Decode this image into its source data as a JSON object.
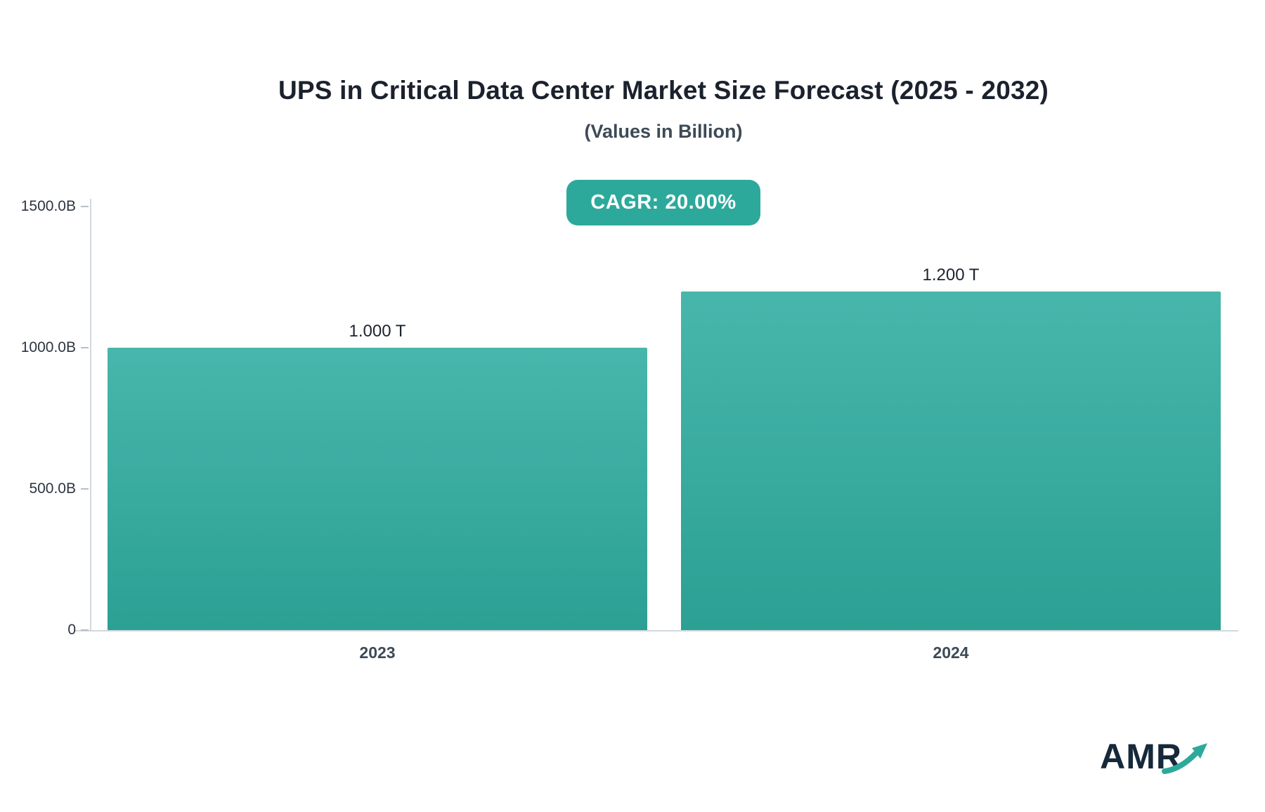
{
  "header": {
    "title": "UPS in Critical Data Center Market Size Forecast (2025 - 2032)",
    "subtitle": "(Values in Billion)",
    "cagr_badge": "CAGR: 20.00%"
  },
  "chart_data": {
    "type": "bar",
    "title": "UPS in Critical Data Center Market Size Forecast (2025 - 2032)",
    "subtitle": "(Values in Billion)",
    "cagr": "CAGR: 20.00%",
    "categories": [
      "2023",
      "2024"
    ],
    "values": [
      1000,
      1200
    ],
    "value_labels": [
      "1.000 T",
      "1.200 T"
    ],
    "xlabel": "",
    "ylabel": "",
    "ylim": [
      0,
      1500
    ],
    "y_tick_values": [
      0,
      500,
      1000,
      1500
    ],
    "y_tick_labels": [
      "0",
      "500.0B",
      "1000.0B",
      "1500.0B"
    ],
    "grid": false,
    "legend": "none"
  },
  "branding": {
    "logo_text": "AMR"
  },
  "colors": {
    "accent": "#2da99c",
    "bar_gradient_top": "#48b6ab",
    "bar_gradient_bottom": "#2ba093",
    "title_text": "#1b222e",
    "axis_text": "#3d4a57",
    "axis_line": "#d2d7dc"
  }
}
